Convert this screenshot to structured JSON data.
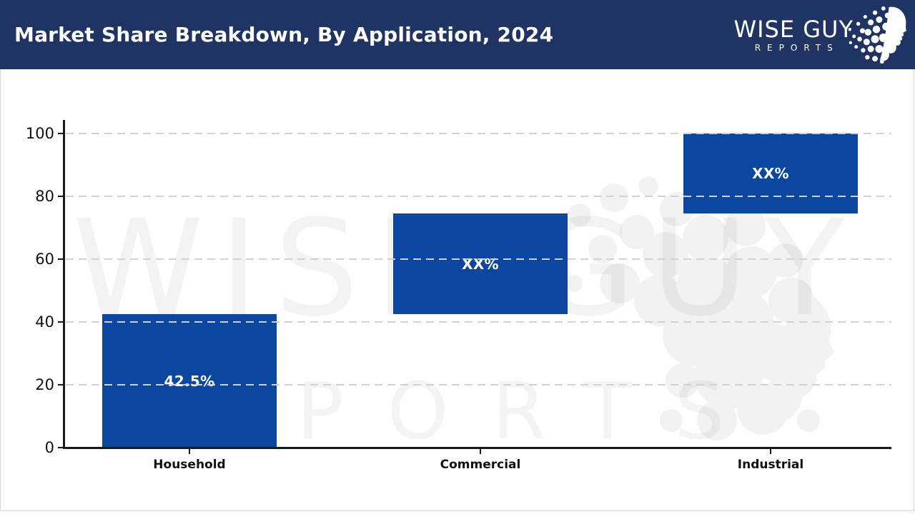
{
  "header": {
    "title": "Market Share Breakdown, By Application, 2024"
  },
  "logo": {
    "brand_line1": "WISE GUY",
    "brand_line2": "REPORTS"
  },
  "watermark": {
    "line1": "WISE GUY",
    "line2": "REPORTS"
  },
  "chart_data": {
    "type": "bar",
    "subtype": "waterfall",
    "title": "Market Share Breakdown, By Application, 2024",
    "categories": [
      "Household",
      "Commercial",
      "Industrial"
    ],
    "series": [
      {
        "name": "Market Share %",
        "segments": [
          {
            "category": "Household",
            "start": 0,
            "end": 42.5,
            "label": "42.5%"
          },
          {
            "category": "Commercial",
            "start": 42.5,
            "end": 74.5,
            "label": "XX%"
          },
          {
            "category": "Industrial",
            "start": 74.5,
            "end": 100,
            "label": "XX%"
          }
        ]
      }
    ],
    "xlabel": "",
    "ylabel": "",
    "ylim": [
      0,
      100
    ],
    "yticks": [
      0,
      20,
      40,
      60,
      80,
      100
    ],
    "grid": "horizontal-dashed",
    "grid_over_bars": true,
    "legend": "none",
    "bar_color": "#0b46a1",
    "bar_label_color": "#ffffff"
  },
  "colors": {
    "header_bg": "#1f3463",
    "bar": "#0b46a1",
    "gridline": "#d2d2d2",
    "axis": "#1a1a1a",
    "body_border": "#d9d9d9",
    "title_text": "#ffffff",
    "tick_text": "#111111"
  }
}
